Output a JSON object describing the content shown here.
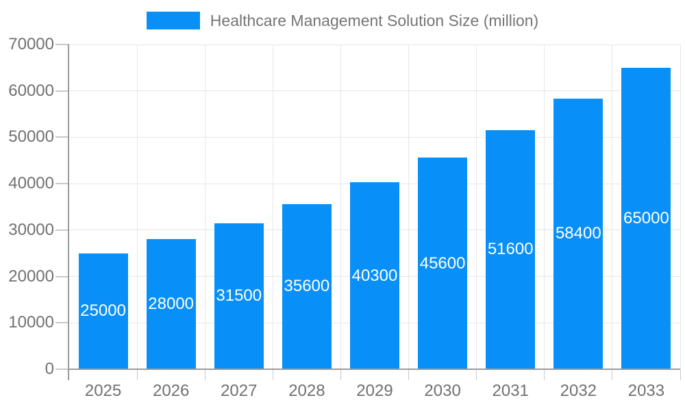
{
  "chart_data": {
    "type": "bar",
    "title": "Healthcare Management Solution Size (million)",
    "legend_position": "top-center",
    "categories": [
      "2025",
      "2026",
      "2027",
      "2028",
      "2029",
      "2030",
      "2031",
      "2032",
      "2033"
    ],
    "series": [
      {
        "name": "Healthcare Management Solution Size (million)",
        "values": [
          25000,
          28000,
          31500,
          35600,
          40300,
          45600,
          51600,
          58400,
          65000
        ]
      }
    ],
    "value_labels": [
      "25000",
      "28000",
      "31500",
      "35600",
      "40300",
      "45600",
      "51600",
      "58400",
      "65000"
    ],
    "xlabel": "",
    "ylabel": "",
    "ylim": [
      0,
      70000
    ],
    "ytick_step": 10000,
    "yticks": [
      0,
      10000,
      20000,
      30000,
      40000,
      50000,
      60000,
      70000
    ],
    "grid": true,
    "colors": {
      "bar": "#0990f8",
      "axis_label": "#707070",
      "legend_label": "#757575",
      "grid_line": "#e6e6e6",
      "axis_line": "#9b9b9b",
      "tick": "#c9c9c9",
      "value_label": "#ffffff",
      "background": "#ffffff"
    }
  }
}
